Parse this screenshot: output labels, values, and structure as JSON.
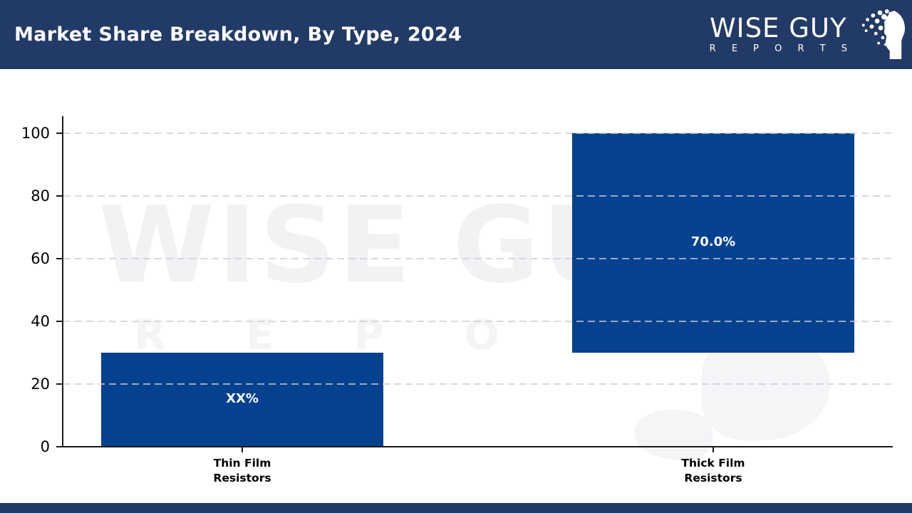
{
  "header": {
    "title": "Market Share Breakdown, By Type, 2024",
    "logo_line1": "WISE GUY",
    "logo_line2": "R E P O R T S"
  },
  "watermark": {
    "line1": "WISE GUY",
    "line2": "R E P O R T S"
  },
  "chart_data": {
    "type": "bar",
    "title": "Market Share Breakdown, By Type, 2024",
    "categories": [
      [
        "Thin Film",
        "Resistors"
      ],
      [
        "Thick Film",
        "Resistors"
      ]
    ],
    "bars": [
      {
        "category": "Thin Film Resistors",
        "start": 0,
        "end": 30,
        "label": "XX%"
      },
      {
        "category": "Thick Film Resistors",
        "start": 30,
        "end": 100,
        "label": "70.0%"
      }
    ],
    "yticks": [
      0,
      20,
      40,
      60,
      80,
      100
    ],
    "ylim": [
      0,
      105
    ],
    "xlabel": "",
    "ylabel": "",
    "grid": "horizontal-dashed",
    "legend": "none"
  },
  "colors": {
    "header_bg": "#223a66",
    "footer_bg": "#223a66",
    "bar_fill": "#04418f",
    "bar_label_text": "#ffffff",
    "axis": "#1a1a1a",
    "grid": "#d9d9d9",
    "title_text": "#ffffff",
    "watermark": "#f2f2f5"
  }
}
